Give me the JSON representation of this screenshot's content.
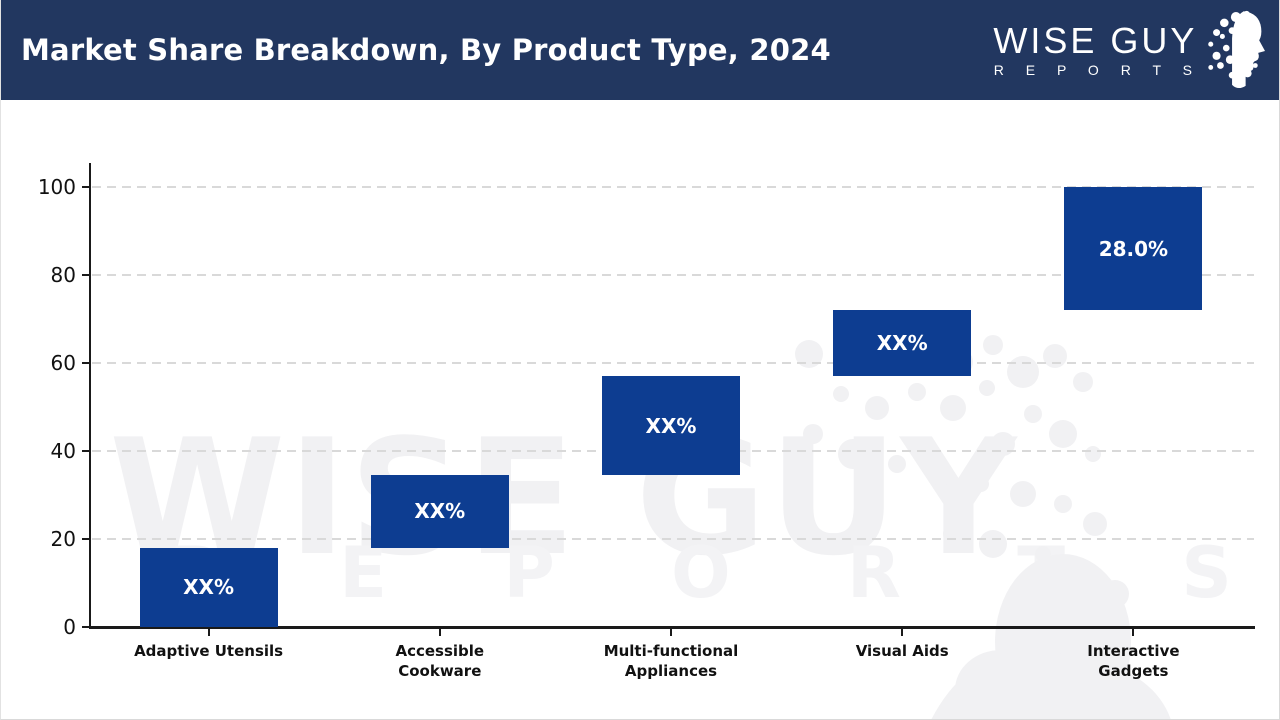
{
  "header": {
    "title": "Market Share Breakdown, By Product Type, 2024",
    "background_color": "#223760",
    "logo": {
      "line1": "WISE GUY",
      "line2": "R E P O R T S"
    }
  },
  "watermark": {
    "line1": "WISE GUY",
    "line2": "R E P O R T S"
  },
  "chart_data": {
    "type": "bar",
    "subtype": "waterfall",
    "title": "Market Share Breakdown, By Product Type, 2024",
    "categories": [
      "Adaptive Utensils",
      "Accessible Cookware",
      "Multi-functional Appliances",
      "Visual Aids",
      "Interactive Gadgets"
    ],
    "tick_labels": [
      "Adaptive Utensils",
      "Accessible\nCookware",
      "Multi-functional\nAppliances",
      "Visual Aids",
      "Interactive\nGadgets"
    ],
    "values": [
      18,
      16.5,
      22.5,
      15,
      28
    ],
    "baselines": [
      0,
      18,
      34.5,
      57,
      72
    ],
    "bar_labels": [
      "XX%",
      "XX%",
      "XX%",
      "XX%",
      "28.0%"
    ],
    "yticks": [
      0,
      20,
      40,
      60,
      80,
      100
    ],
    "ylim": [
      0,
      105
    ],
    "xlabel": "",
    "ylabel": "",
    "grid": "horizontal-dashed",
    "legend": "none",
    "bar_color": "#0d3d91"
  }
}
